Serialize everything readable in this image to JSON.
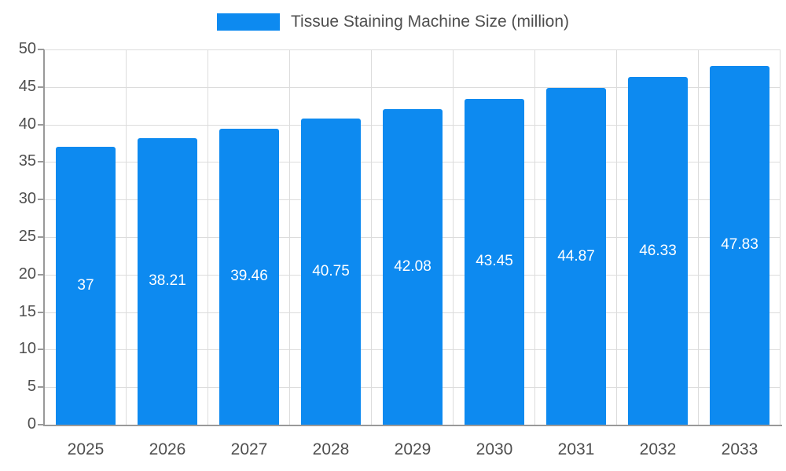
{
  "chart_data": {
    "type": "bar",
    "title": "Tissue Staining Machine Size (million)",
    "categories": [
      "2025",
      "2026",
      "2027",
      "2028",
      "2029",
      "2030",
      "2031",
      "2032",
      "2033"
    ],
    "values": [
      37,
      38.21,
      39.46,
      40.75,
      42.08,
      43.45,
      44.87,
      46.33,
      47.83
    ],
    "labels": [
      "37",
      "38.21",
      "39.46",
      "40.75",
      "42.08",
      "43.45",
      "44.87",
      "46.33",
      "47.83"
    ],
    "xlabel": "",
    "ylabel": "",
    "ylim": [
      0,
      50
    ],
    "ytick_step": 5,
    "grid": true,
    "legend_position": "top-center",
    "bar_color": "#0d8af0",
    "bar_label_color": "#ffffff",
    "axis_text_color": "#4f4f4f",
    "grid_color": "#dcdcdc",
    "axis_line_color": "#999999"
  }
}
